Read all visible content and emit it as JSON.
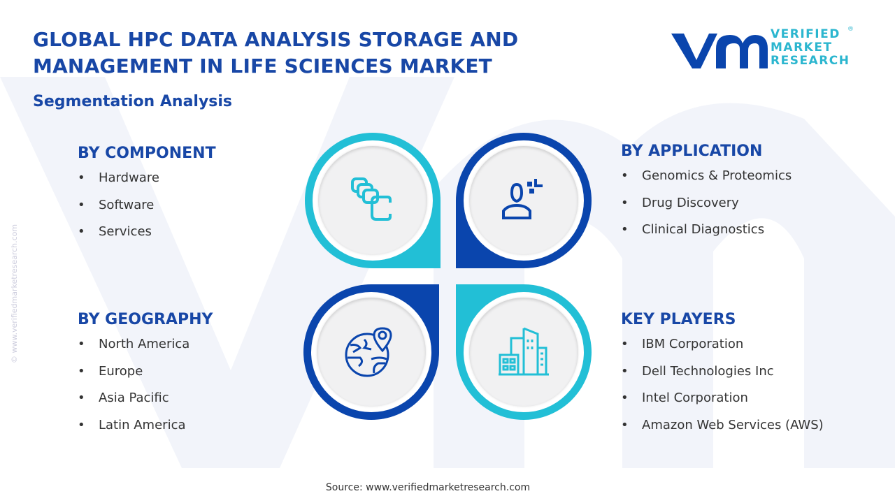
{
  "header": {
    "title_line1": "GLOBAL HPC DATA ANALYSIS STORAGE AND",
    "title_line2": "MANAGEMENT IN LIFE SCIENCES MARKET",
    "subtitle": "Segmentation Analysis"
  },
  "logo": {
    "mark": "vmr",
    "line1": "VERIFIED",
    "line2": "MARKET",
    "line3": "RESEARCH",
    "registered": "®"
  },
  "watermark": "© www.verifiedmarketresearch.com",
  "colors": {
    "dark_blue": "#0a45ad",
    "cyan": "#22bfd6",
    "title": "#1847a6"
  },
  "segments": {
    "component": {
      "title": "BY COMPONENT",
      "icon": "stacked-cards-icon",
      "items": [
        "Hardware",
        "Software",
        "Services"
      ]
    },
    "application": {
      "title": "BY APPLICATION",
      "icon": "user-analysis-icon",
      "items": [
        "Genomics & Proteomics",
        "Drug Discovery",
        "Clinical Diagnostics"
      ]
    },
    "geography": {
      "title": "BY GEOGRAPHY",
      "icon": "globe-location-icon",
      "items": [
        "North America",
        "Europe",
        "Asia Pacific",
        "Latin America"
      ]
    },
    "players": {
      "title": "KEY PLAYERS",
      "icon": "buildings-icon",
      "items": [
        "IBM Corporation",
        "Dell Technologies Inc",
        "Intel Corporation",
        "Amazon Web Services (AWS)"
      ]
    }
  },
  "footer": {
    "source": "Source: www.verifiedmarketresearch.com"
  }
}
